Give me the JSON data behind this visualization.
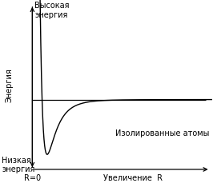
{
  "ylabel_top": "Высокая\nэнергия",
  "ylabel_mid": "Энергия",
  "ylabel_bot": "Низкая\nэнергия",
  "xlabel_origin": "R=0",
  "xlabel_increase": "Увеличение  R",
  "xlabel_isolated": "Изолированные атомы",
  "bg_color": "#ffffff",
  "curve_color": "#000000",
  "axis_color": "#000000",
  "font_size": 7,
  "xlim": [
    0.0,
    10.0
  ],
  "ylim": [
    -3.2,
    4.0
  ],
  "zero_line_y": 0.0,
  "x_axis_y": -2.8,
  "y_axis_x": 1.5,
  "epsilon": 2.2,
  "r_min": 2.2,
  "x_start": 1.52,
  "x_end": 10.0
}
